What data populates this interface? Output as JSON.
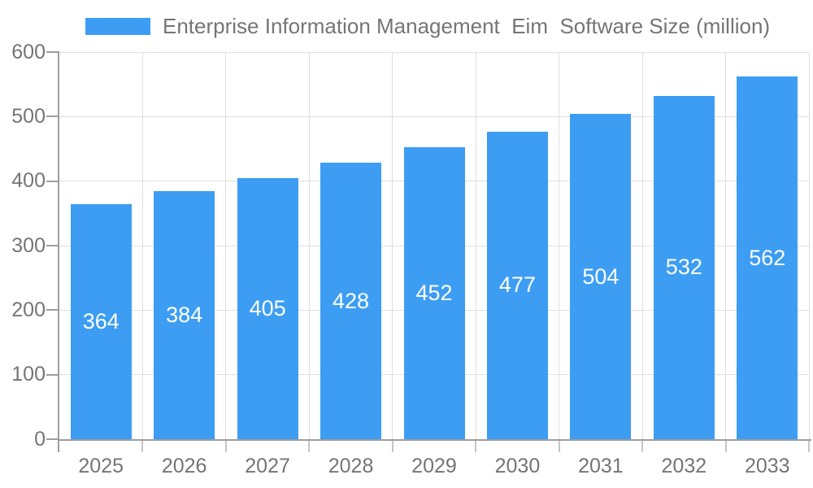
{
  "legend": {
    "label": "Enterprise Information Management  Eim  Software Size (million)"
  },
  "chart_data": {
    "type": "bar",
    "title": "Enterprise Information Management  Eim  Software Size (million)",
    "categories": [
      "2025",
      "2026",
      "2027",
      "2028",
      "2029",
      "2030",
      "2031",
      "2032",
      "2033"
    ],
    "values": [
      364,
      384,
      405,
      428,
      452,
      477,
      504,
      532,
      562
    ],
    "xlabel": "",
    "ylabel": "",
    "ylim": [
      0,
      600
    ],
    "yticks": [
      0,
      100,
      200,
      300,
      400,
      500,
      600
    ],
    "grid": true,
    "bar_labels_inside": true,
    "legend_position": "top-left"
  },
  "colors": {
    "bar": "#3d9df2",
    "axis": "#9e9e9e",
    "grid": "#e0e0e0",
    "x_tick": "#c6c6c6",
    "text": "#757575",
    "bar_label": "#ffffff",
    "background": "#ffffff"
  }
}
